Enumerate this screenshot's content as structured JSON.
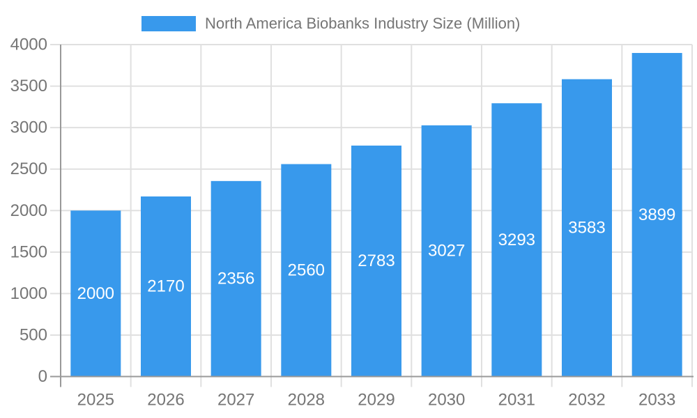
{
  "legend": {
    "label": "North America Biobanks Industry Size (Million)",
    "swatch_color": "#3899ec"
  },
  "chart_data": {
    "type": "bar",
    "title": "North America Biobanks Industry Size (Million)",
    "series_name": "North America Biobanks Industry Size (Million)",
    "categories": [
      "2025",
      "2026",
      "2027",
      "2028",
      "2029",
      "2030",
      "2031",
      "2032",
      "2033"
    ],
    "values": [
      2000,
      2170,
      2356,
      2560,
      2783,
      3027,
      3293,
      3583,
      3899
    ],
    "value_labels": [
      "2000",
      "2170",
      "2356",
      "2560",
      "2783",
      "3027",
      "3293",
      "3583",
      "3899"
    ],
    "xlabel": "",
    "ylabel": "",
    "ylim": [
      0,
      4000
    ],
    "yticks": [
      0,
      500,
      1000,
      1500,
      2000,
      2500,
      3000,
      3500,
      4000
    ],
    "ytick_labels": [
      "0",
      "500",
      "1000",
      "1500",
      "2000",
      "2500",
      "3000",
      "3500",
      "4000"
    ],
    "grid": true,
    "legend_position": "top",
    "colors": {
      "bar": "#3899ec",
      "grid_line": "#e0e0e0",
      "axis_line": "#999999",
      "tick_label": "#757575",
      "value_label": "#ffffff",
      "background": "#ffffff"
    }
  }
}
